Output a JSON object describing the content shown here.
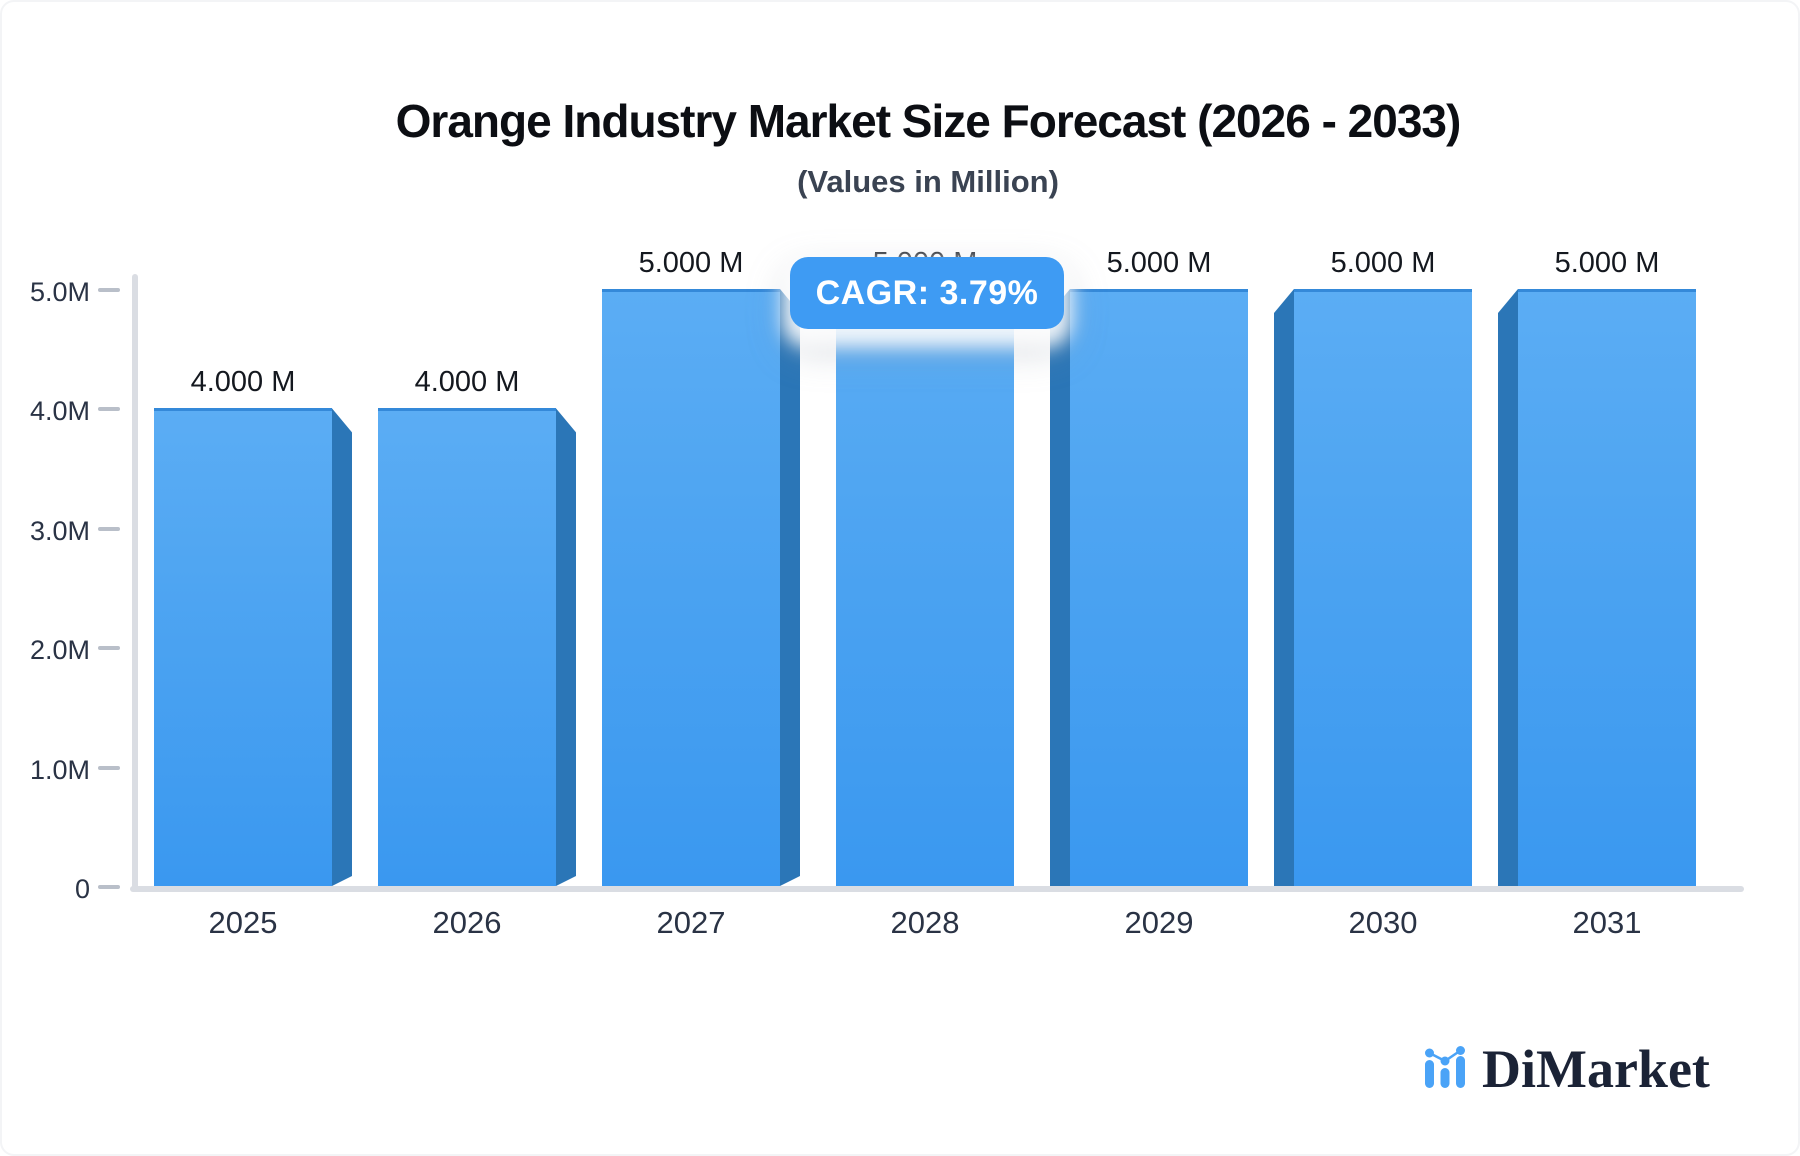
{
  "header": {
    "title": "Orange Industry Market Size Forecast (2026 - 2033)",
    "subtitle": "(Values in Million)"
  },
  "badge": {
    "label": "CAGR: 3.79%",
    "bg": "#3e9bf3",
    "text_color": "#ffffff"
  },
  "watermark": {
    "brand": "DiMarket"
  },
  "chart_data": {
    "type": "bar",
    "title": "Orange Industry Market Size Forecast (2026 - 2033)",
    "subtitle": "(Values in Million)",
    "unit": "Million",
    "categories": [
      "2025",
      "2026",
      "2027",
      "2028",
      "2029",
      "2030",
      "2031"
    ],
    "values": [
      4.0,
      4.0,
      5.0,
      5.0,
      5.0,
      5.0,
      5.0
    ],
    "value_labels": [
      "4.000 M",
      "4.000 M",
      "5.000 M",
      "5.000 M",
      "5.000 M",
      "5.000 M",
      "5.000 M"
    ],
    "ylim": [
      0,
      5.0
    ],
    "ytick_labels": [
      "5.0M",
      "4.0M",
      "3.0M",
      "2.0M",
      "1.0M",
      "0"
    ],
    "grid": false,
    "legend": false,
    "bar_style_3d": true,
    "annotations": [
      {
        "text": "CAGR: 3.79%",
        "position": "top-center, above 2028 bar"
      }
    ],
    "colors": {
      "bar_gradient_top": "#5badf4",
      "bar_gradient_bottom": "#3a98f0",
      "bar_side_face": "#2b76b7",
      "axis_line": "#dadde3",
      "tick_mark": "#b9bfc9",
      "axis_text": "#2a3345",
      "value_text": "#14181f",
      "badge_bg": "#3e9bf3",
      "brand_icon_blue": "#4aa3f7",
      "brand_text_navy": "#1b2336"
    }
  }
}
